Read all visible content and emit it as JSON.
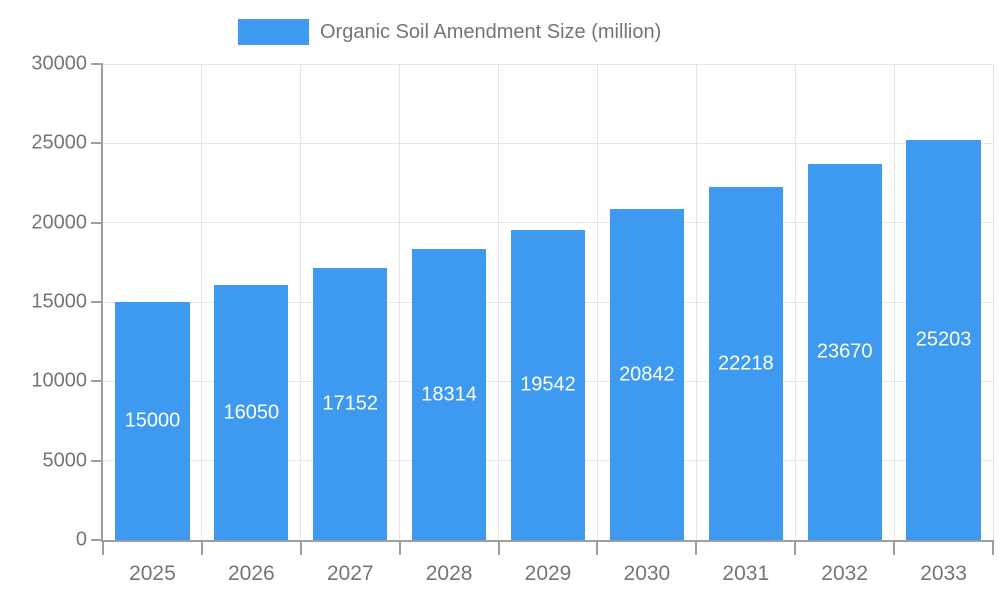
{
  "chart_data": {
    "type": "bar",
    "title": "Organic Soil Amendment Size (million)",
    "legend": "Organic Soil Amendment Size (million)",
    "legend_position": "top",
    "categories": [
      "2025",
      "2026",
      "2027",
      "2028",
      "2029",
      "2030",
      "2031",
      "2032",
      "2033"
    ],
    "values": [
      15000,
      16050,
      17152,
      18314,
      19542,
      20842,
      22218,
      23670,
      25203
    ],
    "value_labels": [
      "15000",
      "16050",
      "17152",
      "18314",
      "19542",
      "20842",
      "22218",
      "23670",
      "25203"
    ],
    "xlabel": "",
    "ylabel": "",
    "ylim": [
      0,
      30000
    ],
    "yticks": [
      0,
      5000,
      10000,
      15000,
      20000,
      25000,
      30000
    ],
    "grid": true,
    "colors": {
      "bar": "#3d9af0",
      "axis": "#9e9e9e",
      "grid": "#e6e6e6",
      "tick_label": "#757575",
      "value_text": "#ffffff",
      "background": "#ffffff"
    }
  }
}
